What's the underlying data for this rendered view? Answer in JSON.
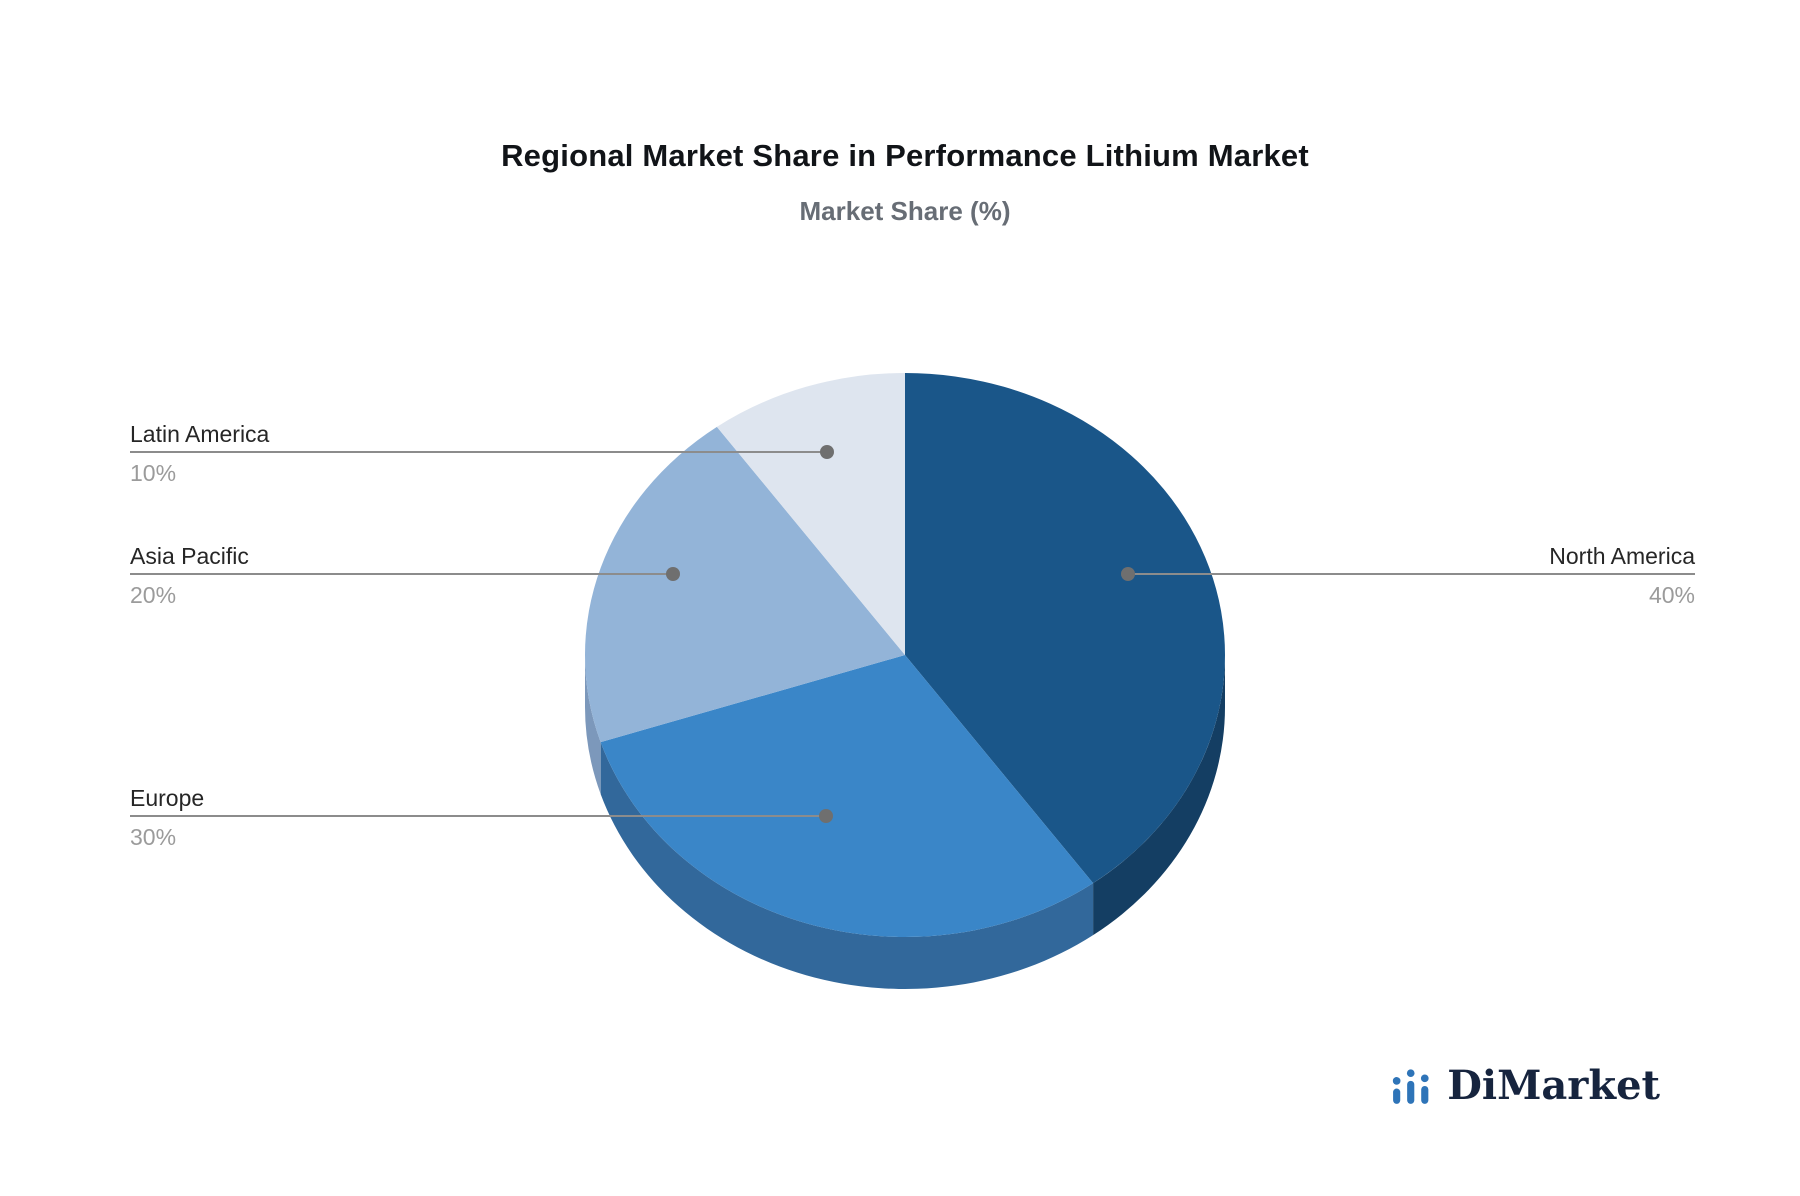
{
  "header": {
    "title": "Regional Market Share in Performance Lithium Market",
    "subtitle": "Market Share (%)"
  },
  "chart_data": {
    "type": "pie",
    "title": "Regional Market Share in Performance Lithium Market",
    "subtitle": "Market Share (%)",
    "value_unit": "%",
    "effect": "3d",
    "start_angle": "12-oclock",
    "direction": "clockwise",
    "label_layout": "callout-lines",
    "legend": "none",
    "slices": [
      {
        "label": "North America",
        "value": 40,
        "pct_label": "40%",
        "color": "#1a5689",
        "side_color": "#143e63",
        "label_side": "right"
      },
      {
        "label": "Europe",
        "value": 30,
        "pct_label": "30%",
        "color": "#3a86c8",
        "side_color": "#32689b",
        "label_side": "left"
      },
      {
        "label": "Asia Pacific",
        "value": 20,
        "pct_label": "20%",
        "color": "#93b4d8",
        "side_color": "#7c98bb",
        "label_side": "left"
      },
      {
        "label": "Latin America",
        "value": 10,
        "pct_label": "10%",
        "color": "#dee5ef",
        "side_color": "#bcc9da",
        "label_side": "left"
      }
    ]
  },
  "callouts": {
    "line_color": "#8c8c8c",
    "dot_color": "#6f6f6f"
  },
  "branding": {
    "logo_text": "DiMarket",
    "logo_icon": "bar-chart-icon",
    "text_color": "#16243e",
    "icon_color": "#2e74b8"
  }
}
